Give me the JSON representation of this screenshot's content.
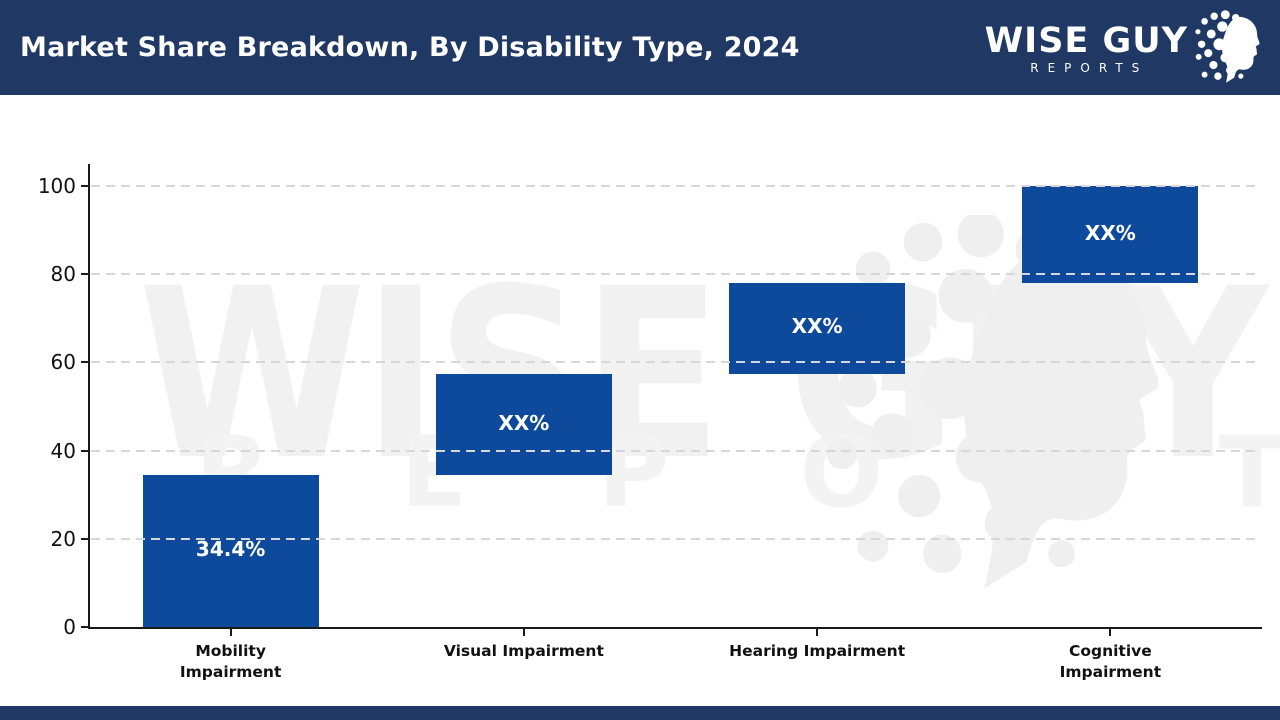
{
  "header": {
    "title": "Market Share Breakdown, By Disability Type, 2024",
    "bg_color": "#1f3864",
    "logo": {
      "line1": "WISE GUY",
      "line2": "REPORTS"
    }
  },
  "watermark": {
    "line1": "WISE GUY",
    "line2": "R E P O R T S",
    "color": "#f1f1f1"
  },
  "footer": {
    "bg_color": "#1f3864"
  },
  "chart_data": {
    "type": "bar",
    "subtype": "floating-waterfall",
    "title": "Market Share Breakdown, By Disability Type, 2024",
    "categories": [
      "Mobility Impairment",
      "Visual Impairment",
      "Hearing Impairment",
      "Cognitive Impairment"
    ],
    "category_lines": [
      [
        "Mobility",
        "Impairment"
      ],
      [
        "Visual Impairment"
      ],
      [
        "Hearing Impairment"
      ],
      [
        "Cognitive",
        "Impairment"
      ]
    ],
    "segments": [
      {
        "category": "Mobility Impairment",
        "from": 0,
        "to": 34.4,
        "label": "34.4%"
      },
      {
        "category": "Visual Impairment",
        "from": 34.4,
        "to": 57.4,
        "label": "XX%"
      },
      {
        "category": "Hearing Impairment",
        "from": 57.4,
        "to": 78,
        "label": "XX%"
      },
      {
        "category": "Cognitive Impairment",
        "from": 78,
        "to": 100,
        "label": "XX%"
      }
    ],
    "y_ticks": [
      0,
      20,
      40,
      60,
      80,
      100
    ],
    "ylim": [
      0,
      106
    ],
    "xlabel": "",
    "ylabel": "",
    "grid": "dashed-horizontal-over-bars",
    "bar_color": "#0d4a9c",
    "bar_label_color": "#ffffff",
    "axis_color": "#1a1a1a",
    "legend": "none"
  }
}
